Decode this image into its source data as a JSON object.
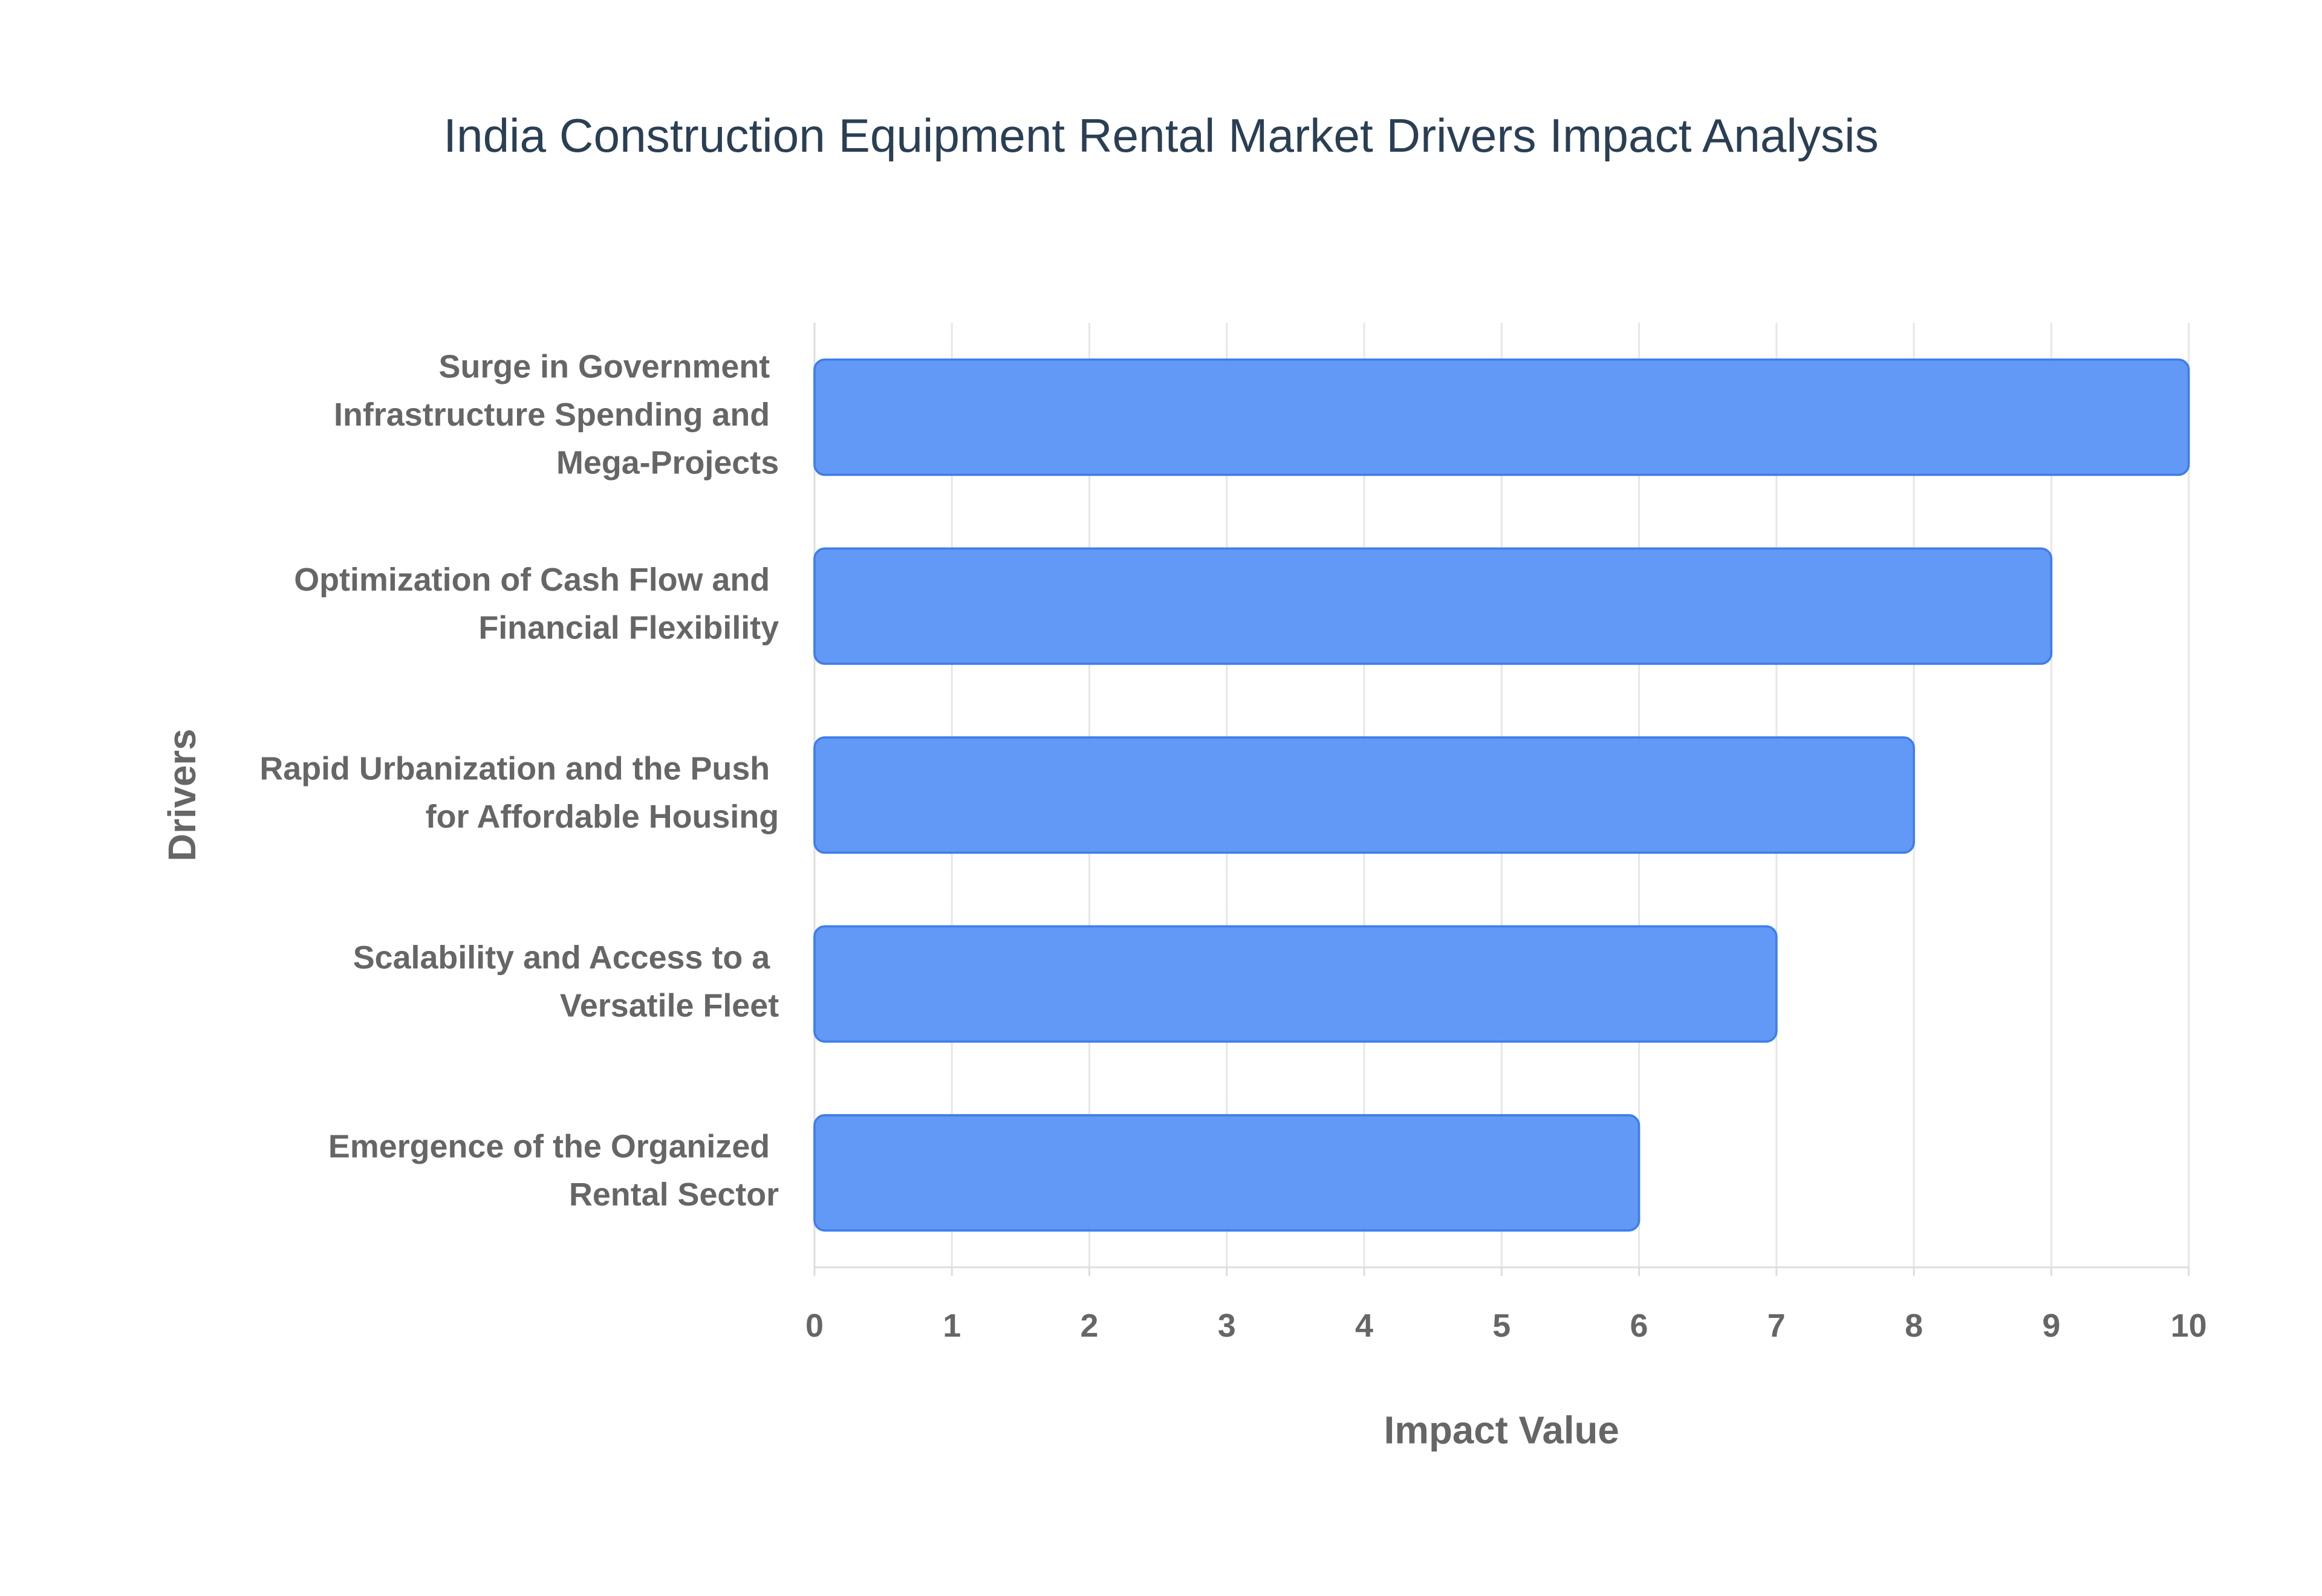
{
  "chart_data": {
    "type": "bar",
    "orientation": "horizontal",
    "title": "India Construction Equipment Rental Market Drivers Impact Analysis",
    "x_label": "Impact Value",
    "y_label": "Drivers",
    "categories": [
      "Surge in Government Infrastructure Spending and Mega-Projects",
      "Optimization of Cash Flow and Financial Flexibility",
      "Rapid Urbanization and the Push for Affordable Housing",
      "Scalability and Access to a Versatile Fleet",
      "Emergence of the Organized Rental Sector"
    ],
    "values": [
      10,
      9,
      8,
      7,
      6
    ],
    "color": "#5b93f5",
    "xlim": [
      0,
      10
    ],
    "xticks": [
      0,
      1,
      2,
      3,
      4,
      5,
      6,
      7,
      8,
      9,
      10
    ],
    "grid": true
  }
}
